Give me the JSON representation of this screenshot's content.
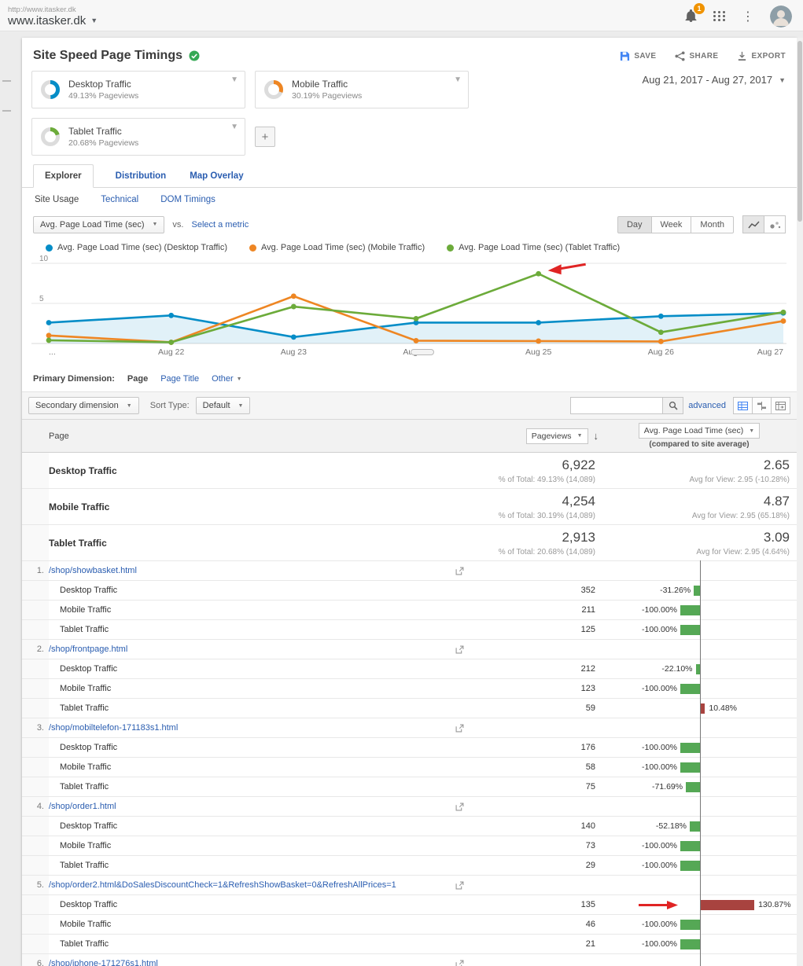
{
  "topbar": {
    "url": "http://www.itasker.dk",
    "account": "www.itasker.dk",
    "notification_badge": "1"
  },
  "header": {
    "title": "Site Speed Page Timings",
    "actions": [
      {
        "id": "save",
        "label": "SAVE"
      },
      {
        "id": "share",
        "label": "SHARE"
      },
      {
        "id": "export",
        "label": "EXPORT"
      }
    ]
  },
  "date_range": "Aug 21, 2017 - Aug 27, 2017",
  "segments": [
    {
      "name": "Desktop Traffic",
      "detail": "49.13% Pageviews",
      "pct": 49.13,
      "color": "#058dc7"
    },
    {
      "name": "Mobile Traffic",
      "detail": "30.19% Pageviews",
      "pct": 30.19,
      "color": "#ee8623"
    },
    {
      "name": "Tablet Traffic",
      "detail": "20.68% Pageviews",
      "pct": 20.68,
      "color": "#6cab3a"
    }
  ],
  "tabs": {
    "items": [
      "Explorer",
      "Distribution",
      "Map Overlay"
    ],
    "active": "Explorer"
  },
  "subtabs": {
    "items": [
      "Site Usage",
      "Technical",
      "DOM Timings"
    ],
    "active": "Site Usage"
  },
  "metric_bar": {
    "metric": "Avg. Page Load Time (sec)",
    "vs_label": "vs.",
    "select_metric": "Select a metric",
    "granularity": [
      "Day",
      "Week",
      "Month"
    ],
    "active_granularity": "Day"
  },
  "chart_data": {
    "type": "line",
    "x": [
      "Aug 21",
      "Aug 22",
      "Aug 23",
      "Aug 24",
      "Aug 25",
      "Aug 26",
      "Aug 27"
    ],
    "x_tick_labels": [
      "...",
      "Aug 22",
      "Aug 23",
      "Aug 24",
      "Aug 25",
      "Aug 26",
      "Aug 27"
    ],
    "ylim": [
      0,
      10
    ],
    "yticks": [
      5,
      10
    ],
    "ylabel": "Avg. Page Load Time (sec)",
    "series": [
      {
        "name": "Avg. Page Load Time (sec) (Desktop Traffic)",
        "color": "#058dc7",
        "area": true,
        "values": [
          2.6,
          3.5,
          0.8,
          2.6,
          2.6,
          3.4,
          3.8
        ]
      },
      {
        "name": "Avg. Page Load Time (sec) (Mobile Traffic)",
        "color": "#ee8623",
        "area": false,
        "values": [
          1.0,
          0.15,
          5.9,
          0.35,
          0.3,
          0.25,
          2.8
        ]
      },
      {
        "name": "Avg. Page Load Time (sec) (Tablet Traffic)",
        "color": "#6cab3a",
        "area": false,
        "values": [
          0.4,
          0.15,
          4.6,
          3.1,
          8.7,
          1.4,
          3.9
        ]
      }
    ],
    "annotation": {
      "type": "red-arrow",
      "series": 2,
      "point": 4
    }
  },
  "primary_dimension": {
    "label": "Primary Dimension:",
    "items": [
      {
        "label": "Page",
        "active": true,
        "caret": false
      },
      {
        "label": "Page Title",
        "active": false,
        "caret": false
      },
      {
        "label": "Other",
        "active": false,
        "caret": true
      }
    ]
  },
  "toolbar": {
    "secondary_dimension": "Secondary dimension",
    "sort_type_label": "Sort Type:",
    "sort_type_value": "Default",
    "search_value": "",
    "advanced": "advanced"
  },
  "table": {
    "columns": {
      "page": "Page",
      "pageviews": "Pageviews",
      "metric": "Avg. Page Load Time (sec)",
      "metric_sub": "(compared to site average)"
    },
    "summary": [
      {
        "name": "Desktop Traffic",
        "pageviews": "6,922",
        "pageviews_sub": "% of Total: 49.13% (14,089)",
        "metric": "2.65",
        "metric_sub": "Avg for View: 2.95 (-10.28%)"
      },
      {
        "name": "Mobile Traffic",
        "pageviews": "4,254",
        "pageviews_sub": "% of Total: 30.19% (14,089)",
        "metric": "4.87",
        "metric_sub": "Avg for View: 2.95 (65.18%)"
      },
      {
        "name": "Tablet Traffic",
        "pageviews": "2,913",
        "pageviews_sub": "% of Total: 20.68% (14,089)",
        "metric": "3.09",
        "metric_sub": "Avg for View: 2.95 (4.64%)"
      }
    ],
    "rows": [
      {
        "num": "1.",
        "page": "/shop/showbasket.html",
        "segments": [
          {
            "name": "Desktop Traffic",
            "pageviews": "352",
            "pct": -31.26,
            "pct_label": "-31.26%"
          },
          {
            "name": "Mobile Traffic",
            "pageviews": "211",
            "pct": -100,
            "pct_label": "-100.00%"
          },
          {
            "name": "Tablet Traffic",
            "pageviews": "125",
            "pct": -100,
            "pct_label": "-100.00%"
          }
        ]
      },
      {
        "num": "2.",
        "page": "/shop/frontpage.html",
        "segments": [
          {
            "name": "Desktop Traffic",
            "pageviews": "212",
            "pct": -22.1,
            "pct_label": "-22.10%"
          },
          {
            "name": "Mobile Traffic",
            "pageviews": "123",
            "pct": -100,
            "pct_label": "-100.00%"
          },
          {
            "name": "Tablet Traffic",
            "pageviews": "59",
            "pct": 10.48,
            "pct_label": "10.48%"
          }
        ]
      },
      {
        "num": "3.",
        "page": "/shop/mobiltelefon-171183s1.html",
        "segments": [
          {
            "name": "Desktop Traffic",
            "pageviews": "176",
            "pct": -100,
            "pct_label": "-100.00%"
          },
          {
            "name": "Mobile Traffic",
            "pageviews": "58",
            "pct": -100,
            "pct_label": "-100.00%"
          },
          {
            "name": "Tablet Traffic",
            "pageviews": "75",
            "pct": -71.69,
            "pct_label": "-71.69%"
          }
        ]
      },
      {
        "num": "4.",
        "page": "/shop/order1.html",
        "segments": [
          {
            "name": "Desktop Traffic",
            "pageviews": "140",
            "pct": -52.18,
            "pct_label": "-52.18%"
          },
          {
            "name": "Mobile Traffic",
            "pageviews": "73",
            "pct": -100,
            "pct_label": "-100.00%"
          },
          {
            "name": "Tablet Traffic",
            "pageviews": "29",
            "pct": -100,
            "pct_label": "-100.00%"
          }
        ]
      },
      {
        "num": "5.",
        "page": "/shop/order2.html&DoSalesDiscountCheck=1&RefreshShowBasket=0&RefreshAllPrices=1",
        "segments": [
          {
            "name": "Desktop Traffic",
            "pageviews": "135",
            "pct": 130.87,
            "pct_label": "130.87%",
            "arrow": true
          },
          {
            "name": "Mobile Traffic",
            "pageviews": "46",
            "pct": -100,
            "pct_label": "-100.00%"
          },
          {
            "name": "Tablet Traffic",
            "pageviews": "21",
            "pct": -100,
            "pct_label": "-100.00%"
          }
        ]
      },
      {
        "num": "6.",
        "page": "/shop/iphone-171276s1.html",
        "segments": []
      }
    ]
  },
  "colors": {
    "link": "#2a5db0",
    "positive_bar": "#a8433f",
    "negative_bar": "#55a855",
    "annotation_arrow": "#e02424",
    "series_desktop": "#058dc7",
    "series_mobile": "#ee8623",
    "series_tablet": "#6cab3a"
  }
}
